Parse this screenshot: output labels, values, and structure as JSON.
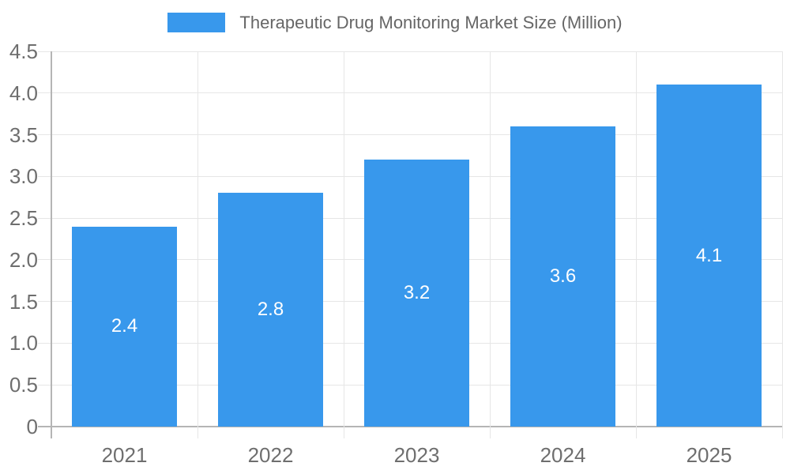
{
  "legend": {
    "label": "Therapeutic Drug Monitoring Market Size (Million)"
  },
  "chart_data": {
    "type": "bar",
    "title": "Therapeutic Drug Monitoring Market Size (Million)",
    "categories": [
      "2021",
      "2022",
      "2023",
      "2024",
      "2025"
    ],
    "values": [
      2.4,
      2.8,
      3.2,
      3.6,
      4.1
    ],
    "value_labels": [
      "2.4",
      "2.8",
      "3.2",
      "3.6",
      "4.1"
    ],
    "y_tick_labels": [
      "4.5",
      "4.0",
      "3.5",
      "3.0",
      "2.5",
      "2.0",
      "1.5",
      "1.0",
      "0.5",
      "0"
    ],
    "ylim": [
      0,
      4.5
    ],
    "y_step": 0.5,
    "xlabel": "",
    "ylabel": "",
    "grid": true,
    "legend_position": "top",
    "colors": {
      "bar": "#3898EC",
      "text": "#6e6e6e",
      "grid": "#E6E6E6",
      "axis": "#B5B5B5",
      "value_label": "#FFFFFF"
    }
  }
}
